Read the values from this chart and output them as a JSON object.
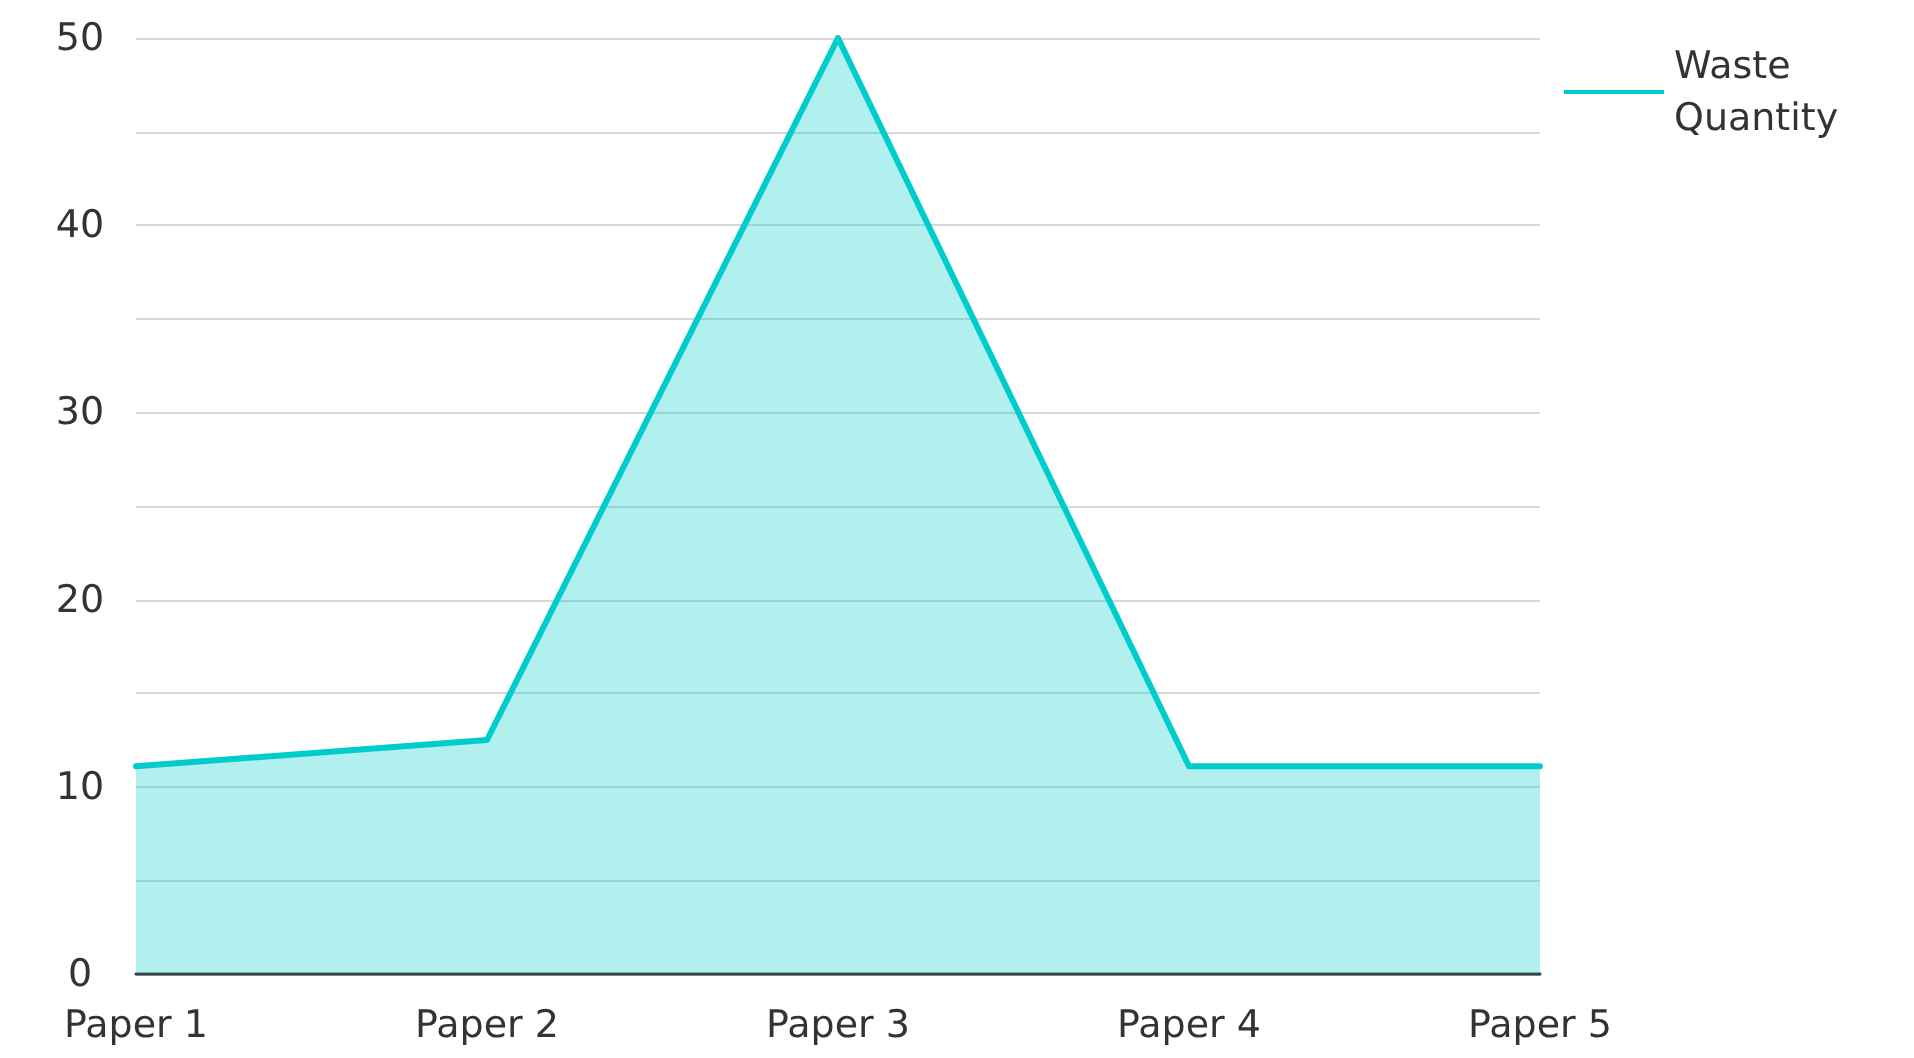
{
  "chart_data": {
    "type": "area",
    "categories": [
      "Paper 1",
      "Paper 2",
      "Paper 3",
      "Paper 4",
      "Paper 5"
    ],
    "series": [
      {
        "name": "Waste Quantity",
        "color": "#00cccc",
        "values": [
          11.1,
          12.5,
          50,
          11.1,
          11.1
        ]
      }
    ],
    "ylim": [
      0,
      50
    ],
    "yticks": [
      0,
      {
        "value": 5,
        "label": null
      },
      10,
      {
        "value": 15,
        "label": null
      },
      20,
      {
        "value": 25,
        "label": null
      },
      30,
      {
        "value": 35,
        "label": null
      },
      40,
      {
        "value": 45,
        "label": null
      },
      50
    ],
    "grid": "y",
    "legend": "top right",
    "marker": "none",
    "line_style": "solid"
  }
}
